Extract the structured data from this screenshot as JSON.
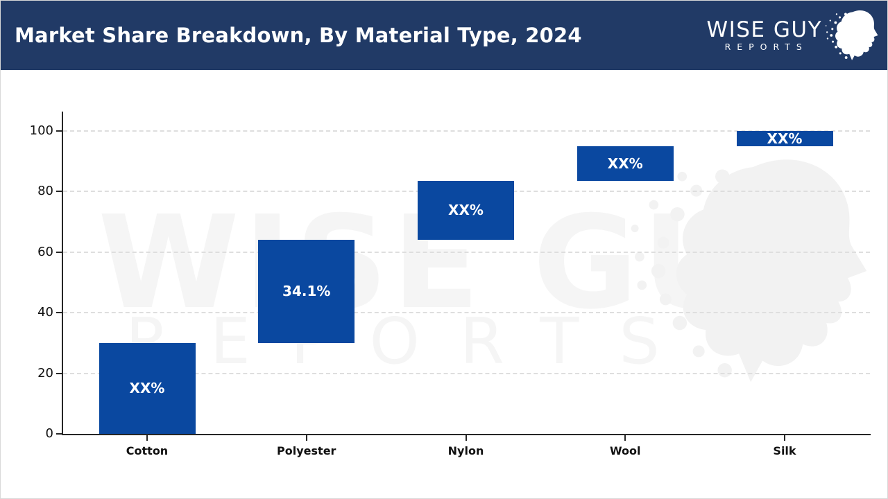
{
  "header": {
    "title": "Market Share Breakdown, By Material Type, 2024",
    "bg_color": "#213a66",
    "logo": {
      "line1": "WISE GUY",
      "line2": "REPORTS",
      "face_icon": "dotted-face-profile"
    }
  },
  "watermark": {
    "line1": "WISE GUY",
    "line2": "REPORTS",
    "face_icon": "dotted-face-profile",
    "color": "#f5f5f5"
  },
  "chart_data": {
    "type": "bar",
    "subtype": "floating-waterfall",
    "title": "Market Share Breakdown, By Material Type, 2024",
    "xlabel": "",
    "ylabel": "",
    "categories": [
      "Cotton",
      "Polyester",
      "Nylon",
      "Wool",
      "Silk"
    ],
    "segments": [
      {
        "category": "Cotton",
        "start": 0,
        "end": 30,
        "label": "XX%"
      },
      {
        "category": "Polyester",
        "start": 30,
        "end": 64.1,
        "label": "34.1%"
      },
      {
        "category": "Nylon",
        "start": 64.1,
        "end": 83.5,
        "label": "XX%"
      },
      {
        "category": "Wool",
        "start": 83.5,
        "end": 94.8,
        "label": "XX%"
      },
      {
        "category": "Silk",
        "start": 94.8,
        "end": 100,
        "label": "XX%"
      }
    ],
    "y_ticks": [
      0,
      20,
      40,
      60,
      80,
      100
    ],
    "ylim": [
      0,
      106
    ],
    "grid": "horizontal-dashed",
    "legend": "none",
    "bar_color": "#0a48a0",
    "bar_label_color": "#ffffff",
    "axis_color": "#262626",
    "grid_color": "#dedede"
  }
}
